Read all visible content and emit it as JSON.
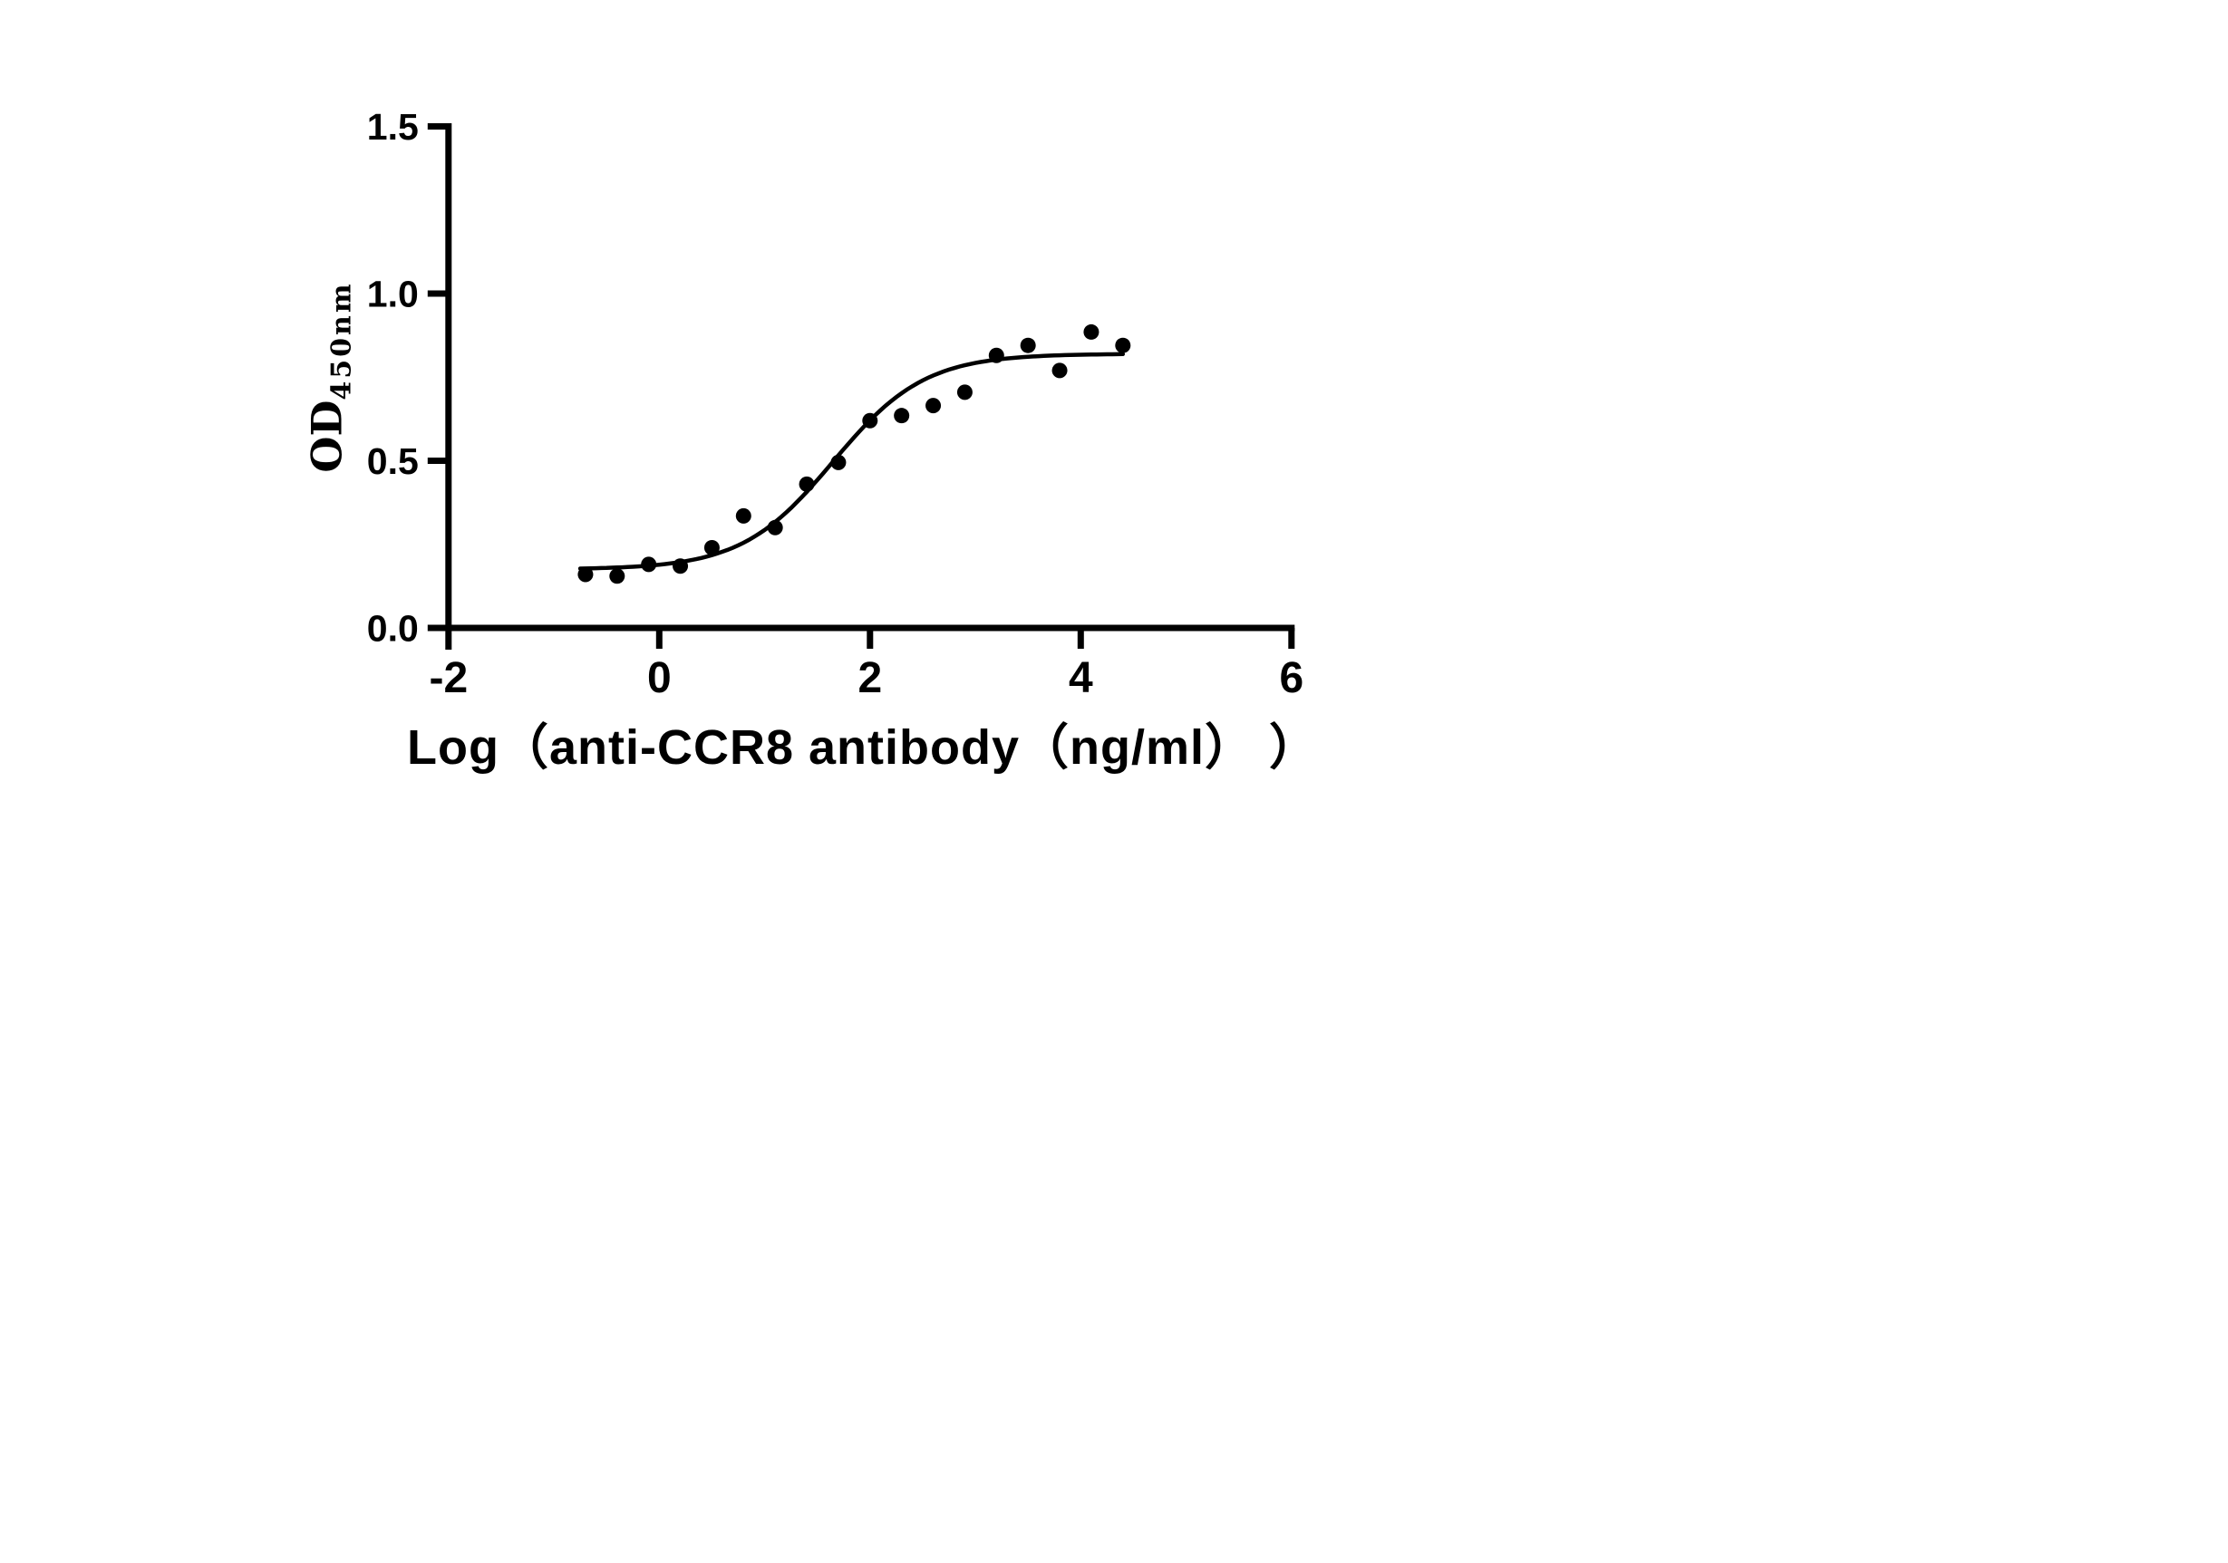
{
  "page": {
    "background_color": "#ffffff"
  },
  "chart_data": {
    "type": "scatter",
    "title": "",
    "xlabel": "Log（anti-CCR8 antibody（ng/ml） ）",
    "ylabel_main": "OD",
    "ylabel_sub": "450nm",
    "xlim": [
      -2,
      6
    ],
    "ylim": [
      0,
      1.5
    ],
    "grid": false,
    "legend": "none",
    "x_ticks": [
      {
        "value": -2,
        "label": "-2"
      },
      {
        "value": 0,
        "label": "0"
      },
      {
        "value": 2,
        "label": "2"
      },
      {
        "value": 4,
        "label": "4"
      },
      {
        "value": 6,
        "label": "6"
      }
    ],
    "y_ticks": [
      {
        "value": 0.0,
        "label": "0.0"
      },
      {
        "value": 0.5,
        "label": "0.5"
      },
      {
        "value": 1.0,
        "label": "1.0"
      },
      {
        "value": 1.5,
        "label": "1.5"
      }
    ],
    "series": [
      {
        "name": "od-measurements",
        "type": "scatter",
        "x": [
          -0.7,
          -0.4,
          -0.1,
          0.2,
          0.5,
          0.8,
          1.1,
          1.4,
          1.7,
          2.0,
          2.3,
          2.6,
          2.9,
          3.2,
          3.5,
          3.8,
          4.1,
          4.4
        ],
        "y": [
          0.16,
          0.155,
          0.19,
          0.185,
          0.24,
          0.335,
          0.3,
          0.43,
          0.495,
          0.62,
          0.635,
          0.665,
          0.705,
          0.815,
          0.845,
          0.77,
          0.885,
          0.845
        ]
      },
      {
        "name": "sigmoid-fit-curve",
        "type": "sigmoid-fit",
        "bottom": 0.175,
        "top": 0.82,
        "logEC50": 1.65,
        "hill": 1.0,
        "x_range": [
          -0.75,
          4.4
        ]
      }
    ],
    "colors": {
      "points": "#000000",
      "curve": "#000000",
      "axis": "#000000",
      "text": "#000000"
    }
  }
}
